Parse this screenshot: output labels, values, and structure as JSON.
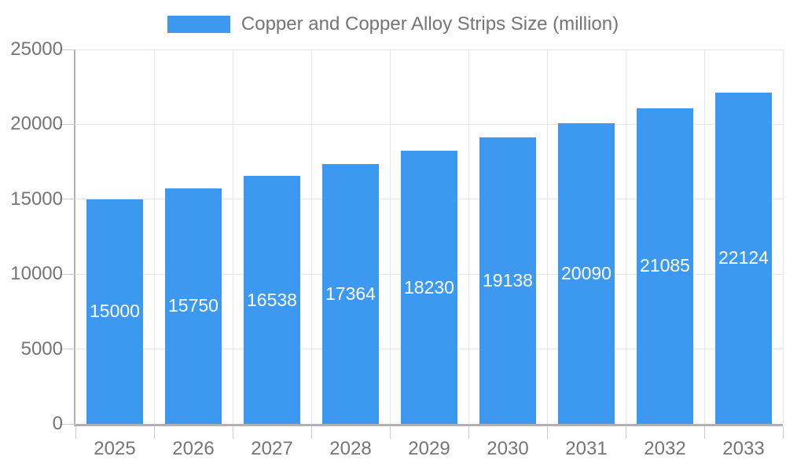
{
  "legend": {
    "label": "Copper and Copper Alloy Strips Size (million)"
  },
  "chart_data": {
    "type": "bar",
    "title": "Copper and Copper Alloy Strips Size (million)",
    "categories": [
      "2025",
      "2026",
      "2027",
      "2028",
      "2029",
      "2030",
      "2031",
      "2032",
      "2033"
    ],
    "values": [
      15000,
      15750,
      16538,
      17364,
      18230,
      19138,
      20090,
      21085,
      22124
    ],
    "value_labels_shown": true,
    "value_label_position": "inside-center",
    "xlabel": "",
    "ylabel": "",
    "ylim": [
      0,
      25000
    ],
    "yticks": [
      0,
      5000,
      10000,
      15000,
      20000,
      25000
    ],
    "grid": true,
    "legend_position": "top-center"
  },
  "colors": {
    "bar": "#3d99f0",
    "bar_value_text": "#ffffff",
    "axis_line": "#b1b1b1",
    "tick_mark": "#cccccc",
    "gridline": "#e6e6e6",
    "label_text": "#757575",
    "background": "#ffffff"
  }
}
